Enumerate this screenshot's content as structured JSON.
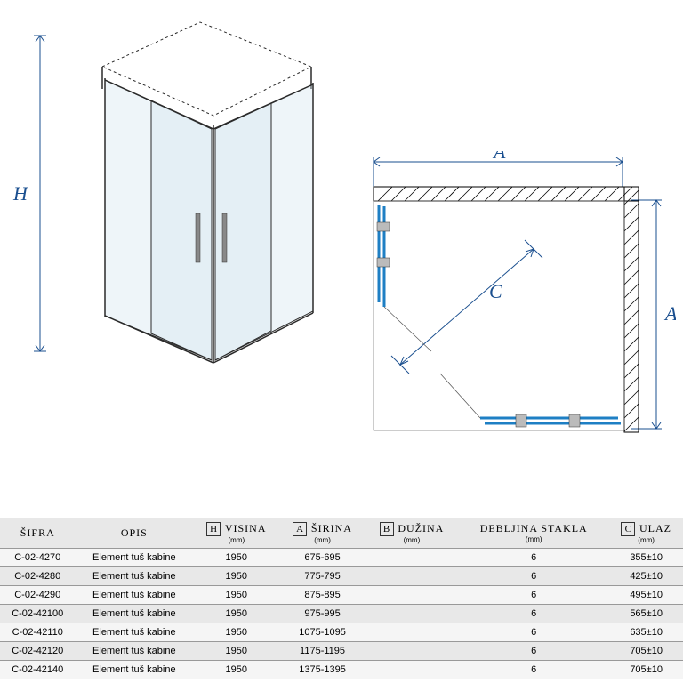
{
  "diagram": {
    "height_label": "H",
    "width_label": "A",
    "entry_label": "C",
    "colors": {
      "dimension": "#1a4f8f",
      "outline": "#2a2a2a",
      "glass": "#d4e6f0",
      "top_accent": "#1e7fc4"
    }
  },
  "table": {
    "headers": {
      "sifra": "ŠIFRA",
      "opis": "OPIS",
      "visina": "VISINA",
      "visina_unit": "(mm)",
      "sirina": "ŠIRINA",
      "sirina_unit": "(mm)",
      "duzina": "DUŽINA",
      "duzina_unit": "(mm)",
      "debljina": "DEBLJINA STAKLA",
      "debljina_unit": "(mm)",
      "ulaz": "ULAZ",
      "ulaz_unit": "(mm)",
      "box_h": "H",
      "box_a": "A",
      "box_b": "B",
      "box_c": "C"
    },
    "rows": [
      {
        "sifra": "C-02-4270",
        "opis": "Element tuš kabine",
        "visina": "1950",
        "sirina": "675-695",
        "duzina": "",
        "debljina": "6",
        "ulaz": "355±10"
      },
      {
        "sifra": "C-02-4280",
        "opis": "Element tuš kabine",
        "visina": "1950",
        "sirina": "775-795",
        "duzina": "",
        "debljina": "6",
        "ulaz": "425±10"
      },
      {
        "sifra": "C-02-4290",
        "opis": "Element tuš kabine",
        "visina": "1950",
        "sirina": "875-895",
        "duzina": "",
        "debljina": "6",
        "ulaz": "495±10"
      },
      {
        "sifra": "C-02-42100",
        "opis": "Element tuš kabine",
        "visina": "1950",
        "sirina": "975-995",
        "duzina": "",
        "debljina": "6",
        "ulaz": "565±10"
      },
      {
        "sifra": "C-02-42110",
        "opis": "Element tuš kabine",
        "visina": "1950",
        "sirina": "1075-1095",
        "duzina": "",
        "debljina": "6",
        "ulaz": "635±10"
      },
      {
        "sifra": "C-02-42120",
        "opis": "Element tuš kabine",
        "visina": "1950",
        "sirina": "1175-1195",
        "duzina": "",
        "debljina": "6",
        "ulaz": "705±10"
      },
      {
        "sifra": "C-02-42140",
        "opis": "Element tuš kabine",
        "visina": "1950",
        "sirina": "1375-1395",
        "duzina": "",
        "debljina": "6",
        "ulaz": "705±10"
      }
    ]
  }
}
